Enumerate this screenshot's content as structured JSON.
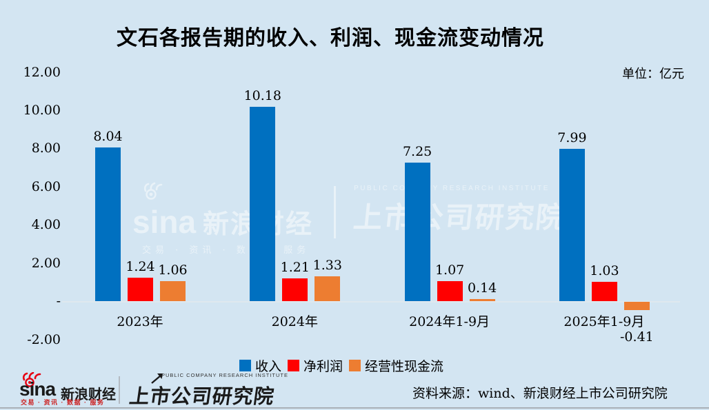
{
  "title": "文石各报告期的收入、利润、现金流变动情况",
  "unit_label": "单位：亿元",
  "chart_data": {
    "type": "bar",
    "title": "文石各报告期的收入、利润、现金流变动情况",
    "unit": "亿元",
    "categories": [
      "2023年",
      "2024年",
      "2024年1-9月",
      "2025年1-9月"
    ],
    "series": [
      {
        "key": "revenue",
        "name": "收入",
        "color": "#0070C0",
        "values": [
          8.04,
          10.18,
          7.25,
          7.99
        ]
      },
      {
        "key": "net-profit",
        "name": "净利润",
        "color": "#FF0000",
        "values": [
          1.24,
          1.21,
          1.07,
          1.03
        ]
      },
      {
        "key": "operating-cash-flow",
        "name": "经营性现金流",
        "color": "#ED7D31",
        "values": [
          1.06,
          1.33,
          0.14,
          -0.41
        ]
      }
    ],
    "y_axis": {
      "ticks": [
        "12.00",
        "10.00",
        "8.00",
        "6.00",
        "4.00",
        "2.00",
        "-",
        "-2.00"
      ],
      "tick_values": [
        12,
        10,
        8,
        6,
        4,
        2,
        0,
        -2
      ],
      "min": -2,
      "max": 12
    },
    "legend_position": "bottom",
    "grid": false,
    "data_labels": true
  },
  "watermark": {
    "sina_text": "sina",
    "brand": "新浪财经",
    "tagline": "交易 · 资讯 · 数据 · 服务",
    "institute_en": "PUBLIC COMPANY RESEARCH INSTITUTE",
    "institute": "上市公司研究院"
  },
  "footer": {
    "sina_logo_text": "sina",
    "sina_brand": "新浪财经",
    "sina_tagline": "交易 · 资讯 · 数据 · 服务",
    "institute_en": "PUBLIC COMPANY RESEARCH INSTITUTE",
    "institute": "上市公司研究院",
    "source": "资料来源：wind、新浪财经上市公司研究院"
  },
  "colors": {
    "background": "#d3e5f2",
    "revenue": "#0070C0",
    "net_profit": "#FF0000",
    "operating_cash_flow": "#ED7D31",
    "axis_line": "#dfe8ef",
    "bottom_rule": "#a9b0b6"
  }
}
